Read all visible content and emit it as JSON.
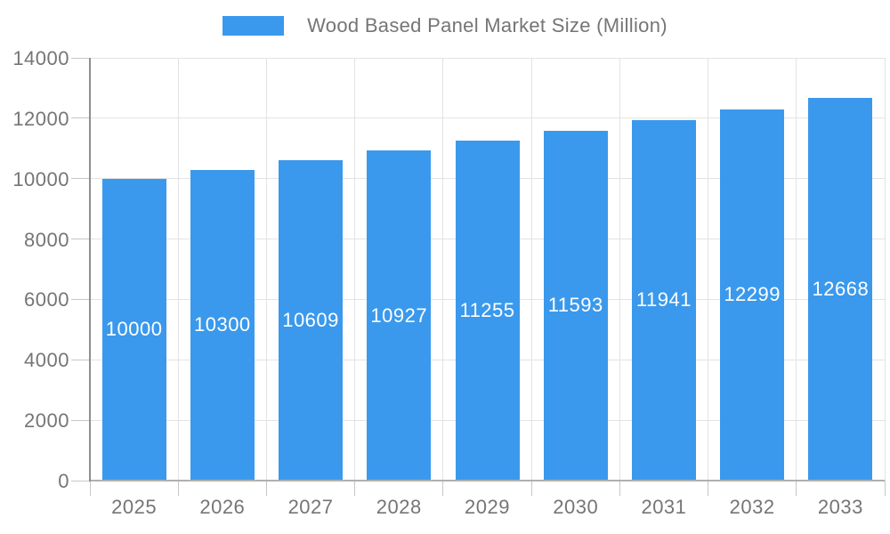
{
  "chart_data": {
    "type": "bar",
    "title": "",
    "legend_position": "top",
    "categories": [
      "2025",
      "2026",
      "2027",
      "2028",
      "2029",
      "2030",
      "2031",
      "2032",
      "2033"
    ],
    "series": [
      {
        "name": "Wood Based Panel Market Size (Million)",
        "values": [
          10000,
          10300,
          10609,
          10927,
          11255,
          11593,
          11941,
          12299,
          12668
        ]
      }
    ],
    "value_labels": [
      "10000",
      "10300",
      "10609",
      "10927",
      "11255",
      "11593",
      "11941",
      "12299",
      "12668"
    ],
    "ylim": [
      0,
      14000
    ],
    "ytick_step": 2000,
    "ytick_labels": [
      "0",
      "2000",
      "4000",
      "6000",
      "8000",
      "10000",
      "12000",
      "14000"
    ],
    "grid": true,
    "colors": {
      "bar": "#3A99EC",
      "value_label": "#FFFFFF",
      "axis_text": "#757575",
      "gridline": "#E3E3E3",
      "y_axis_line": "#8F8F8F",
      "x_axis_line": "#B0B0B0",
      "tick": "#C6C6C6",
      "background": "#FFFFFF"
    }
  }
}
